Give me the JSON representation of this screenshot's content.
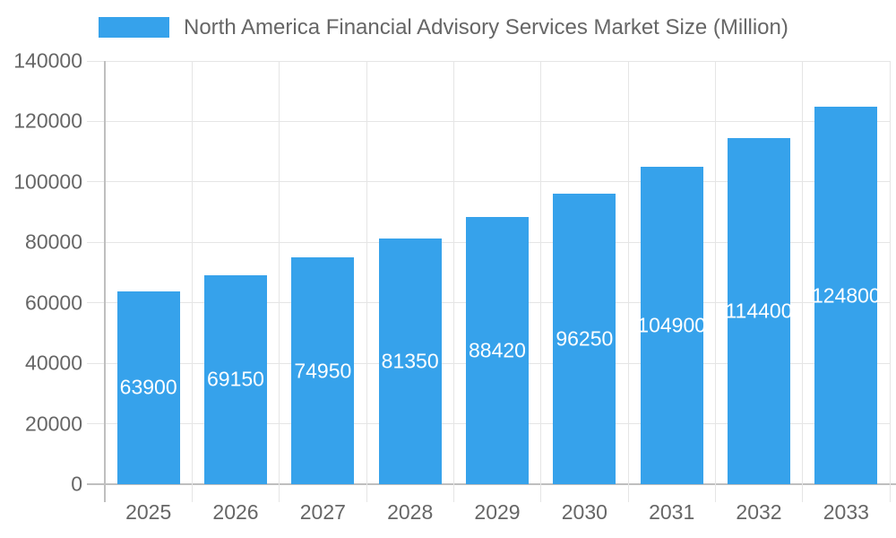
{
  "legend": {
    "label": "North America Financial Advisory Services Market Size (Million)"
  },
  "colors": {
    "bar": "#36A2EB",
    "grid": "#E5E5E5",
    "axis_line": "#BFBFBF",
    "text": "#666666",
    "data_label_text": "#FFFFFF",
    "background": "#FFFFFF"
  },
  "chart_data": {
    "type": "bar",
    "title": "North America Financial Advisory Services Market Size (Million)",
    "categories": [
      "2025",
      "2026",
      "2027",
      "2028",
      "2029",
      "2030",
      "2031",
      "2032",
      "2033"
    ],
    "series": [
      {
        "name": "North America Financial Advisory Services Market Size (Million)",
        "values": [
          63900,
          69150,
          74950,
          81350,
          88420,
          96250,
          104900,
          114400,
          124800
        ]
      }
    ],
    "xlabel": "",
    "ylabel": "",
    "ylim": [
      0,
      140000
    ],
    "y_ticks": [
      0,
      20000,
      40000,
      60000,
      80000,
      100000,
      120000,
      140000
    ],
    "grid": true,
    "legend_position": "top",
    "data_labels_position": "inside-center"
  }
}
